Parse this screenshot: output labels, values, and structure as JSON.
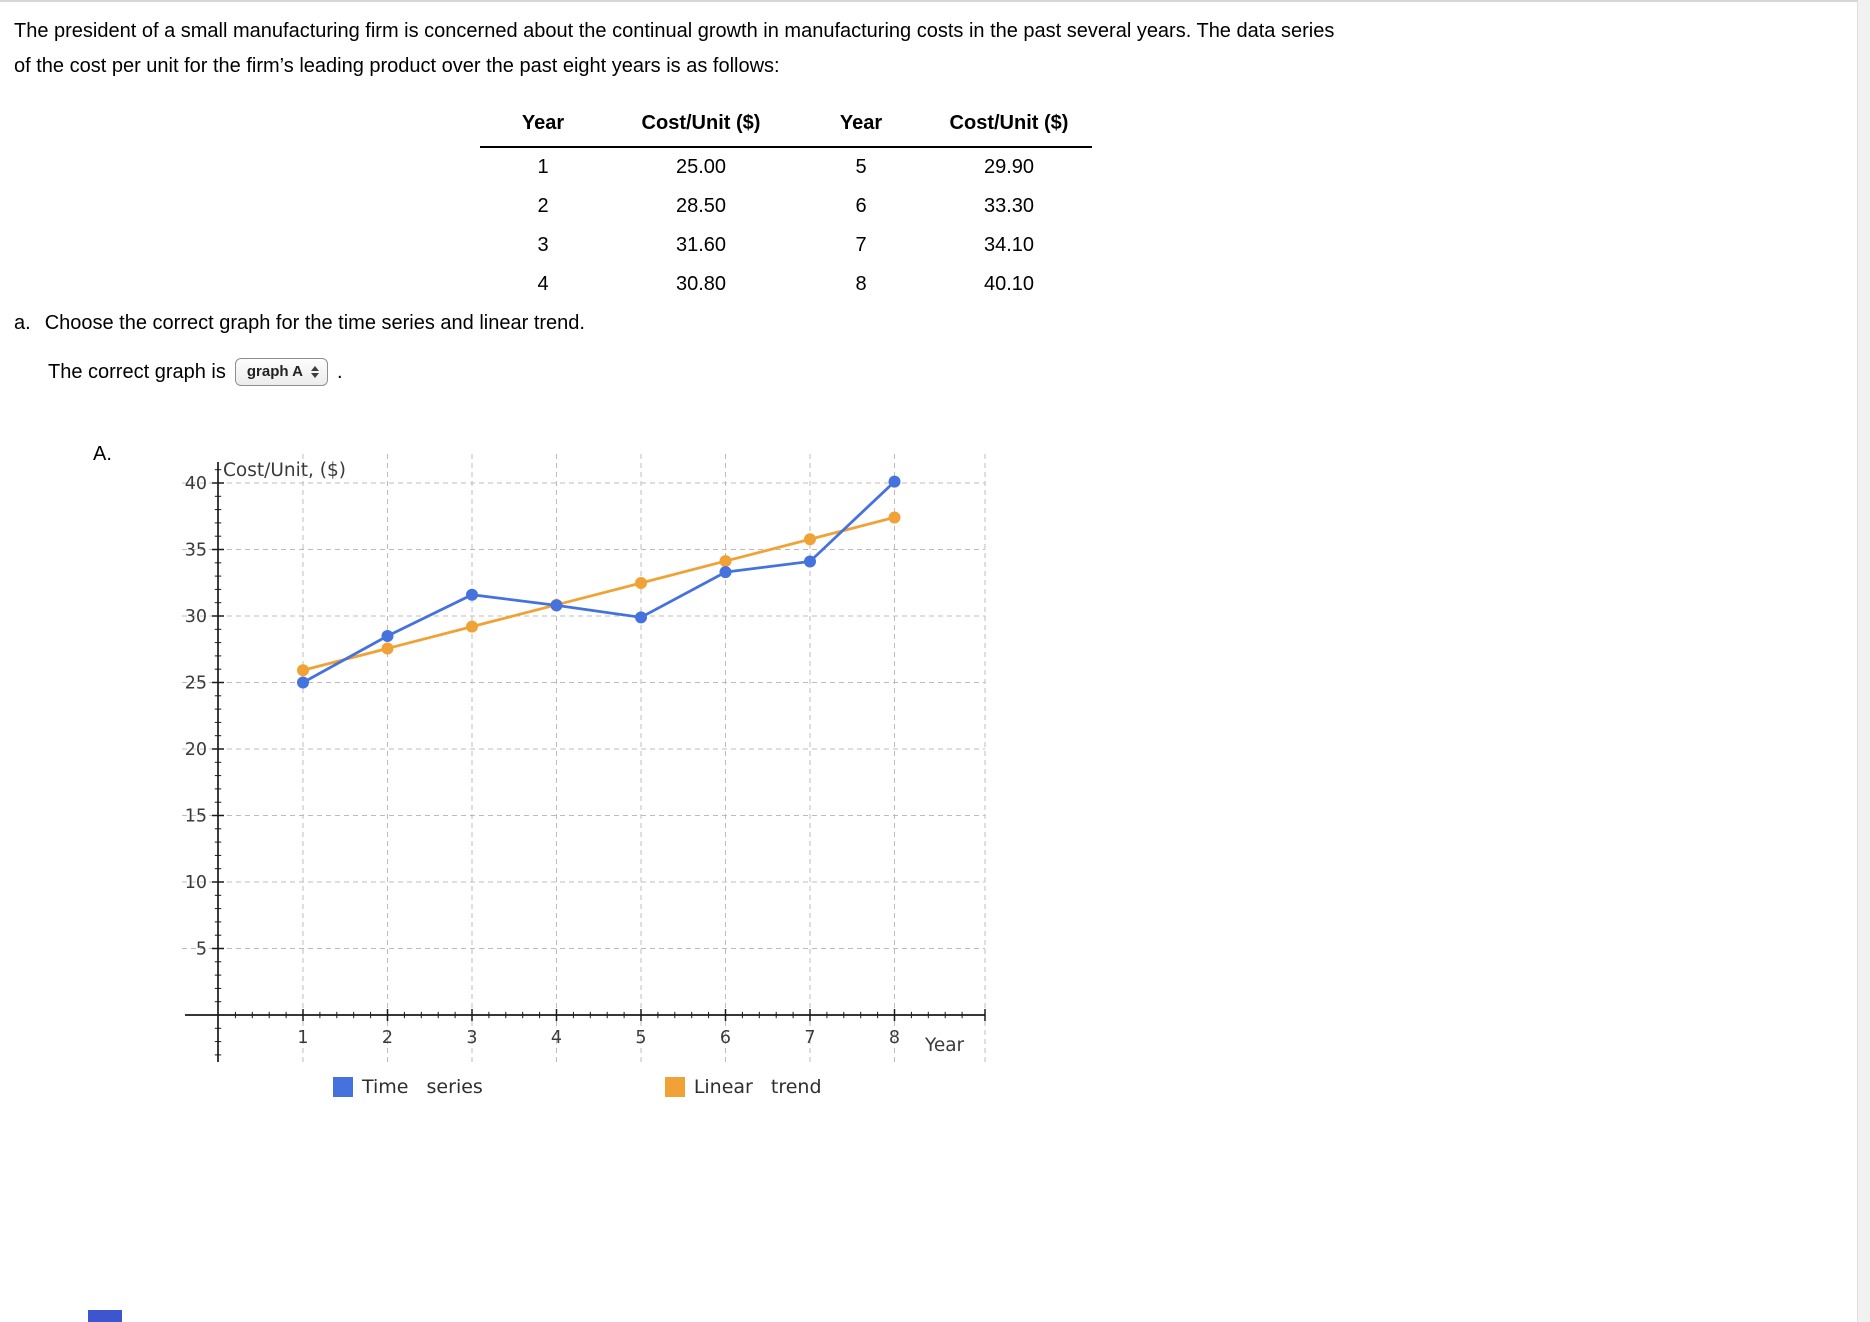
{
  "intro": {
    "lines": [
      "The president of a small manufacturing firm is concerned about the continual growth in manufacturing costs in the past several years. The data series",
      "of the cost per unit for the firm’s leading product over the past eight years is as follows:"
    ]
  },
  "table": {
    "headers": [
      "Year",
      "Cost/Unit ($)",
      "Year",
      "Cost/Unit ($)"
    ],
    "rows": [
      [
        "1",
        "25.00",
        "5",
        "29.90"
      ],
      [
        "2",
        "28.50",
        "6",
        "33.30"
      ],
      [
        "3",
        "31.60",
        "7",
        "34.10"
      ],
      [
        "4",
        "30.80",
        "8",
        "40.10"
      ]
    ]
  },
  "question": {
    "part_label": "a.",
    "prompt": "Choose the correct graph for the time series and linear trend.",
    "answer_prefix": "The correct graph is",
    "dropdown_value": "graph A",
    "answer_suffix": "."
  },
  "option_label": "A.",
  "chart_data": {
    "type": "line",
    "title": "",
    "xlabel": "Year",
    "ylabel": "Cost/Unit, ($)",
    "x": [
      1,
      2,
      3,
      4,
      5,
      6,
      7,
      8
    ],
    "xticks": [
      1,
      2,
      3,
      4,
      5,
      6,
      7,
      8
    ],
    "yticks": [
      5,
      10,
      15,
      20,
      25,
      30,
      35,
      40
    ],
    "ylim": [
      0,
      40
    ],
    "grid": true,
    "legend_position": "bottom",
    "series": [
      {
        "name": "Time series",
        "color": "#4672dd",
        "values": [
          25.0,
          28.5,
          31.6,
          30.8,
          29.9,
          33.3,
          34.1,
          40.1
        ]
      },
      {
        "name": "Linear trend",
        "color": "#f0a236",
        "values": [
          25.92,
          27.56,
          29.2,
          30.84,
          32.48,
          34.13,
          35.77,
          37.41
        ]
      }
    ]
  }
}
